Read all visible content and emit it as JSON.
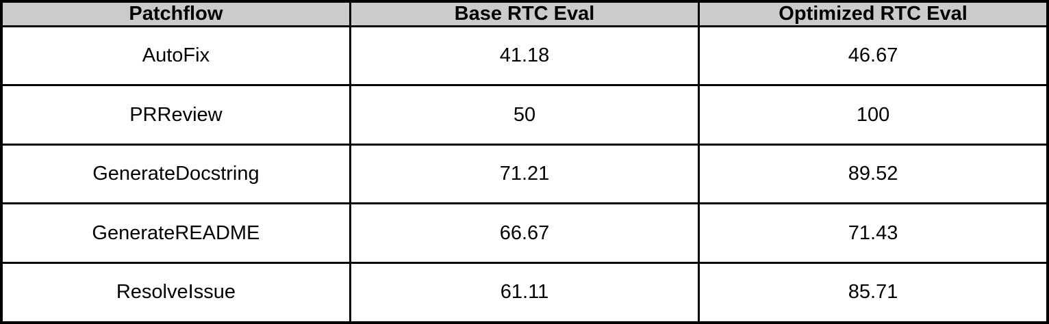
{
  "table": {
    "headers": [
      "Patchflow",
      "Base RTC Eval",
      "Optimized RTC Eval"
    ],
    "rows": [
      [
        "AutoFix",
        "41.18",
        "46.67"
      ],
      [
        "PRReview",
        "50",
        "100"
      ],
      [
        "GenerateDocstring",
        "71.21",
        "89.52"
      ],
      [
        "GenerateREADME",
        "66.67",
        "71.43"
      ],
      [
        "ResolveIssue",
        "61.11",
        "85.71"
      ]
    ]
  },
  "colors": {
    "header_background": "#cbcbcb",
    "border": "#000000",
    "text": "#000000",
    "row_background": "#ffffff"
  },
  "chart_data": {
    "type": "table",
    "title": "",
    "columns": [
      "Patchflow",
      "Base RTC Eval",
      "Optimized RTC Eval"
    ],
    "categories": [
      "AutoFix",
      "PRReview",
      "GenerateDocstring",
      "GenerateREADME",
      "ResolveIssue"
    ],
    "series": [
      {
        "name": "Base RTC Eval",
        "values": [
          41.18,
          50,
          71.21,
          66.67,
          61.11
        ]
      },
      {
        "name": "Optimized RTC Eval",
        "values": [
          46.67,
          100,
          89.52,
          71.43,
          85.71
        ]
      }
    ]
  }
}
